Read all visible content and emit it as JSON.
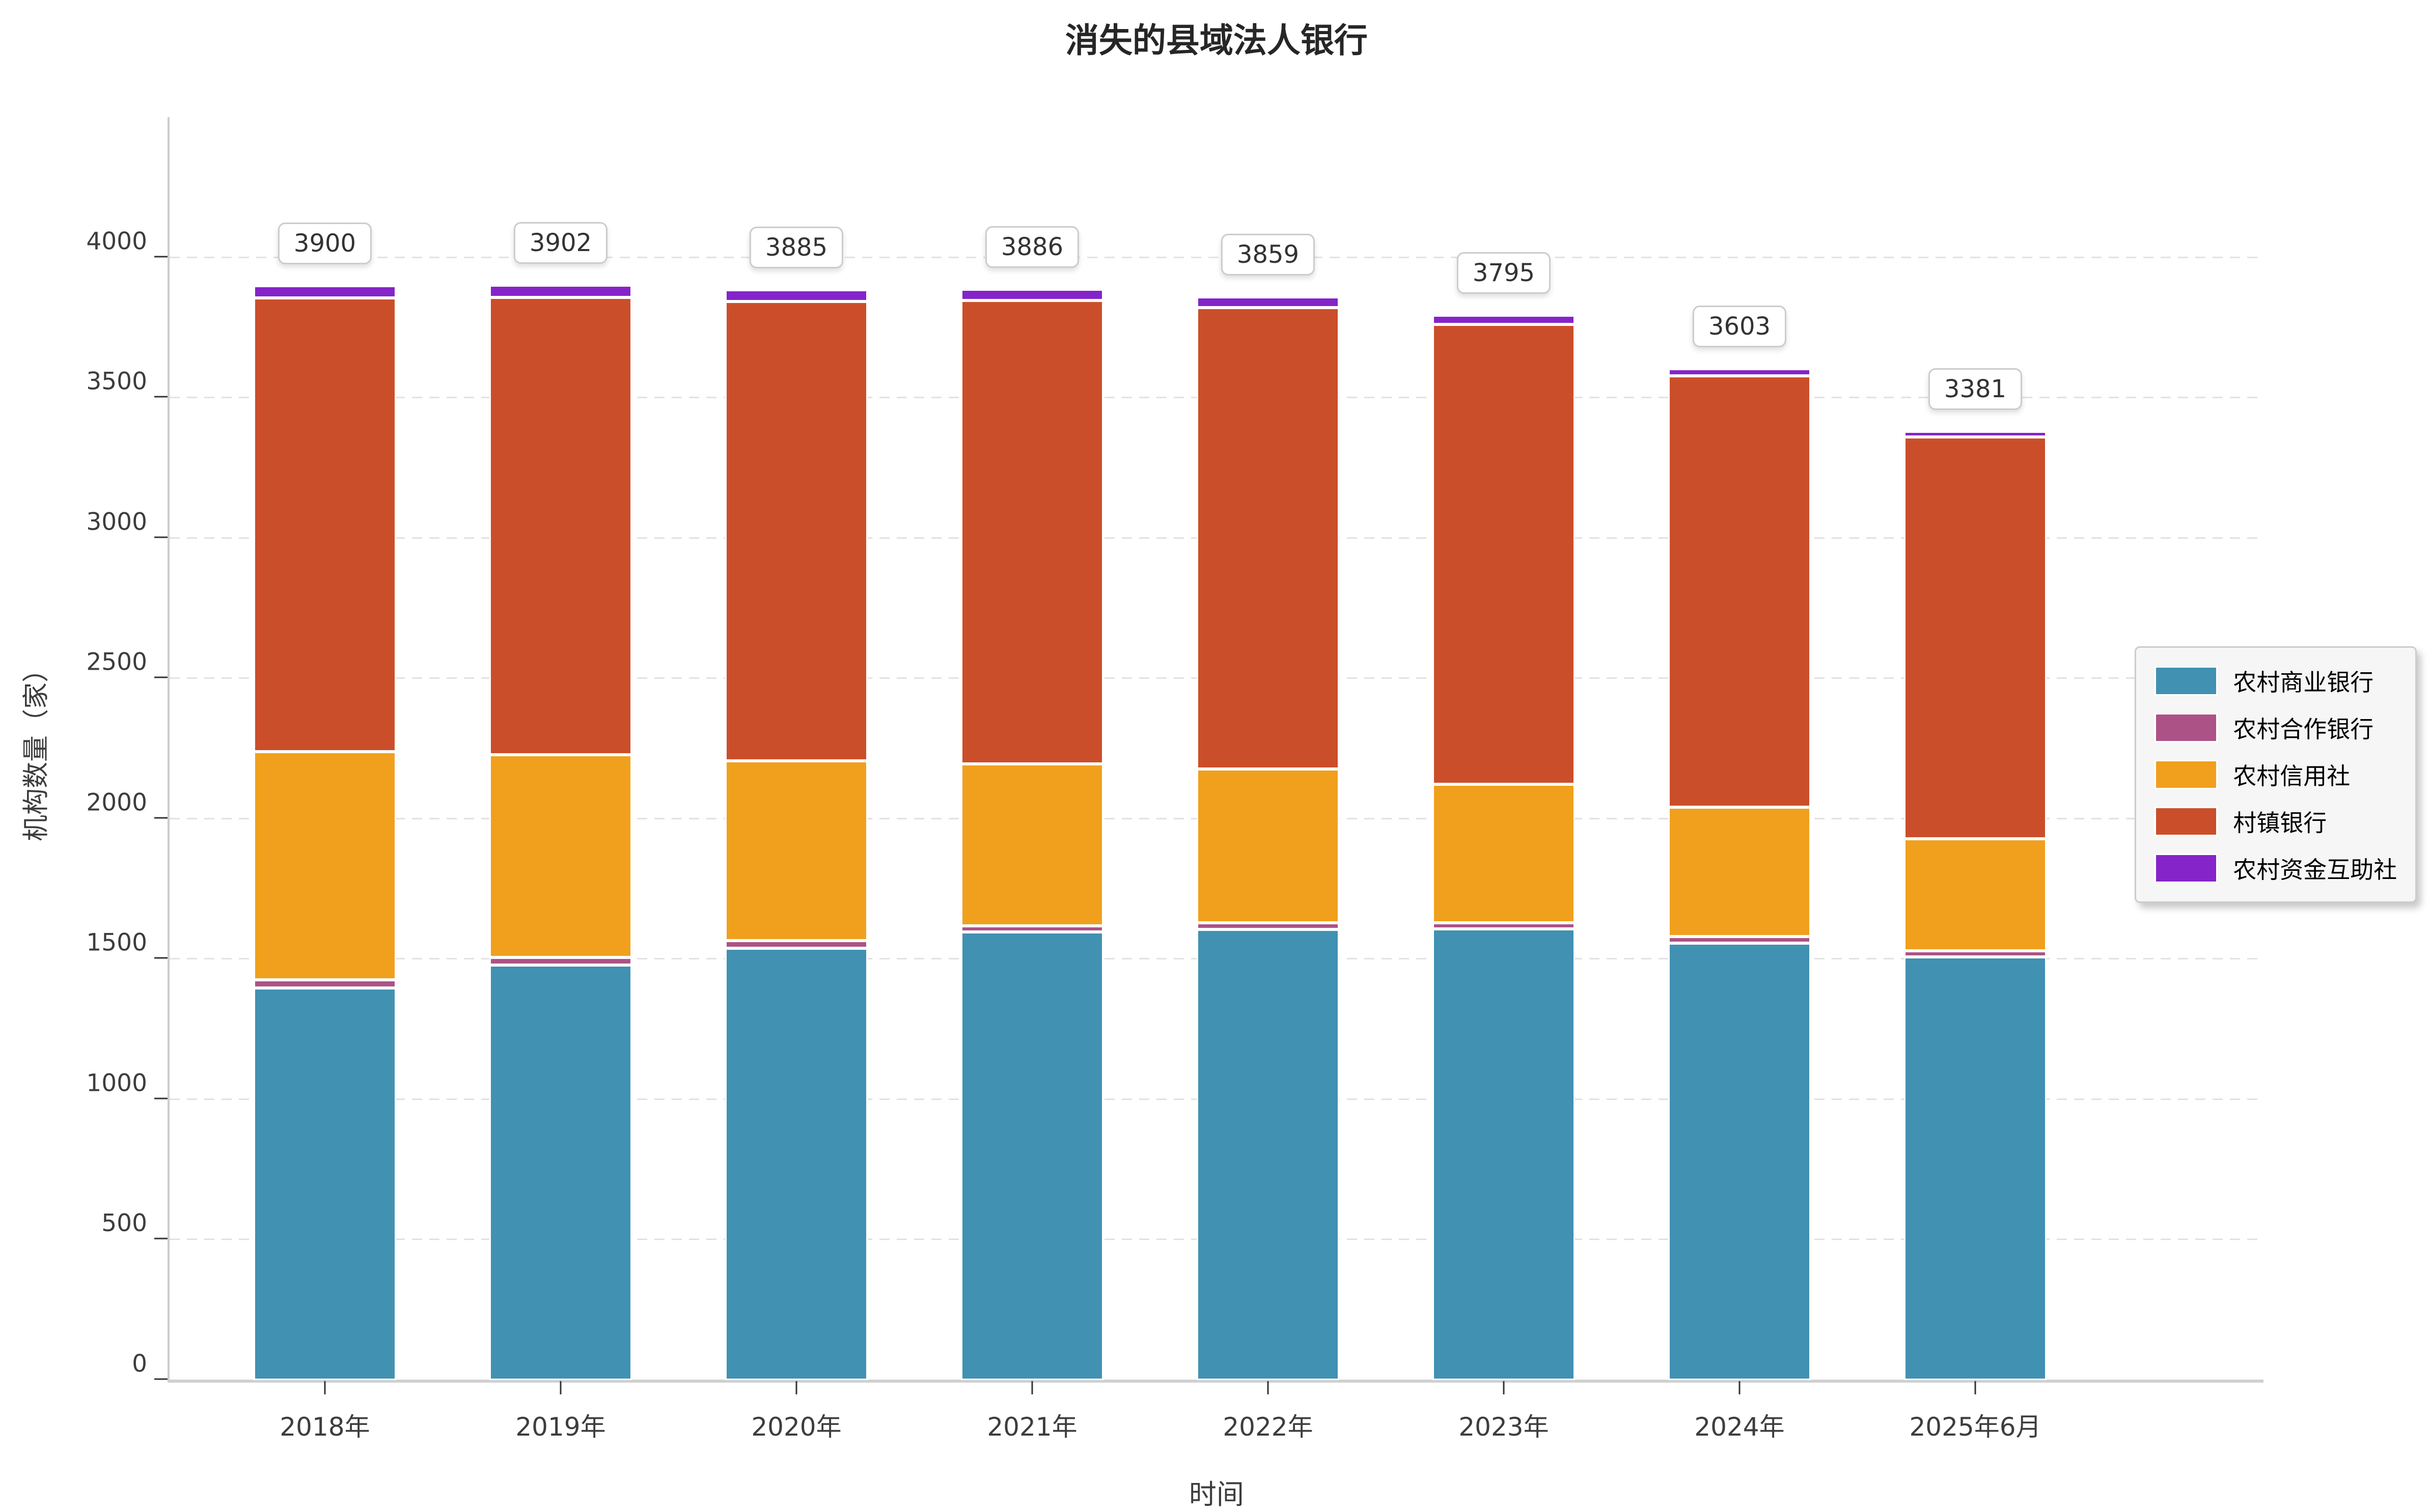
{
  "title": "消失的县域法人银行",
  "x_axis": {
    "label": "时间",
    "categories": [
      "2018年",
      "2019年",
      "2020年",
      "2021年",
      "2022年",
      "2023年",
      "2024年",
      "2025年6月"
    ]
  },
  "y_axis": {
    "label": "机构数量（家）",
    "ticks": [
      0,
      500,
      1000,
      1500,
      2000,
      2500,
      3000,
      3500,
      4000
    ],
    "max": 4500
  },
  "legend": {
    "position": "center-right",
    "items": [
      "农村商业银行",
      "农村合作银行",
      "农村信用社",
      "村镇银行",
      "农村资金互助社"
    ]
  },
  "chart_data": {
    "type": "bar",
    "stacked": true,
    "title": "消失的县域法人银行",
    "xlabel": "时间",
    "ylabel": "机构数量（家）",
    "ylim": [
      0,
      4500
    ],
    "grid": "horizontal dashed",
    "legend_position": "center-right",
    "categories": [
      "2018年",
      "2019年",
      "2020年",
      "2021年",
      "2022年",
      "2023年",
      "2024年",
      "2025年6月"
    ],
    "series": [
      {
        "name": "农村商业银行",
        "key": "rural-commercial-bank",
        "color": "#4191b2",
        "values": [
          1397,
          1478,
          1539,
          1596,
          1606,
          1607,
          1557,
          1507
        ]
      },
      {
        "name": "农村合作银行",
        "key": "rural-cooperative-bank",
        "color": "#ad5286",
        "values": [
          30,
          28,
          27,
          23,
          23,
          23,
          23,
          23
        ]
      },
      {
        "name": "农村信用社",
        "key": "rural-credit-cooperative",
        "color": "#f0a01d",
        "values": [
          812,
          722,
          641,
          577,
          548,
          493,
          461,
          399
        ]
      },
      {
        "name": "村镇银行",
        "key": "village-bank",
        "color": "#cb4e2a",
        "values": [
          1616,
          1630,
          1637,
          1651,
          1645,
          1639,
          1537,
          1432
        ]
      },
      {
        "name": "农村资金互助社",
        "key": "rural-mutual-aid-cooperative",
        "color": "#8524c9",
        "values": [
          45,
          44,
          41,
          39,
          37,
          33,
          25,
          20
        ]
      }
    ],
    "totals": [
      3900,
      3902,
      3885,
      3886,
      3859,
      3795,
      3603,
      3381
    ]
  },
  "colors": {
    "background": "#ffffff",
    "grid": "#e2e2e2",
    "spine": "#cccccc",
    "tick_mark": "#333333",
    "tick_text": "#3d3d3d",
    "title_text": "#262626",
    "label_box_bg": "#ffffff",
    "label_box_border": "#cccccc",
    "legend_bg": "#f6f6f6",
    "legend_border": "#cccccc",
    "segment_edge": "#ffffff"
  }
}
